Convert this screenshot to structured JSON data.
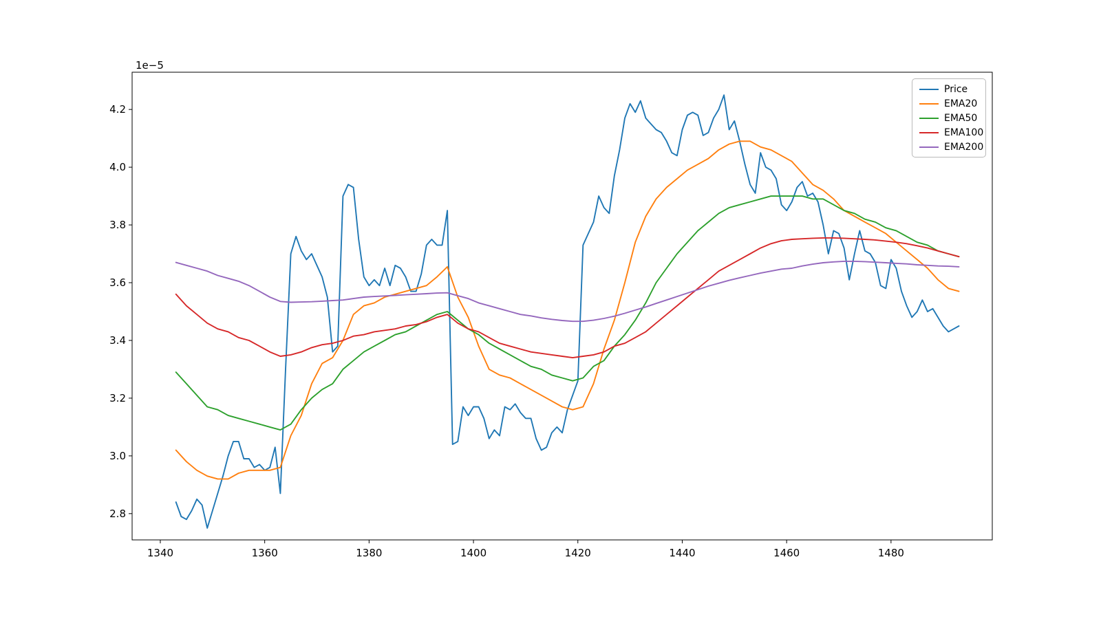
{
  "chart_data": {
    "type": "line",
    "title": "",
    "xlabel": "",
    "ylabel": "",
    "y_offset_label": "1e−5",
    "xlim": [
      1334.6,
      1499.4
    ],
    "ylim": [
      2.709,
      4.329
    ],
    "x_ticks": [
      1340,
      1360,
      1380,
      1400,
      1420,
      1440,
      1460,
      1480
    ],
    "y_ticks": [
      2.8,
      3.0,
      3.2,
      3.4,
      3.6,
      3.8,
      4.0,
      4.2
    ],
    "grid": false,
    "legend_position": "upper right",
    "series": [
      {
        "name": "Price",
        "color": "#1f77b4",
        "x_start": 1343,
        "x_step": 1,
        "values": [
          2.84,
          2.79,
          2.78,
          2.81,
          2.85,
          2.83,
          2.75,
          2.81,
          2.87,
          2.93,
          3.0,
          3.05,
          3.05,
          2.99,
          2.99,
          2.96,
          2.97,
          2.95,
          2.96,
          3.03,
          2.87,
          3.3,
          3.7,
          3.76,
          3.71,
          3.68,
          3.7,
          3.66,
          3.62,
          3.55,
          3.36,
          3.38,
          3.9,
          3.94,
          3.93,
          3.75,
          3.62,
          3.59,
          3.61,
          3.59,
          3.65,
          3.59,
          3.66,
          3.65,
          3.62,
          3.57,
          3.57,
          3.63,
          3.73,
          3.75,
          3.73,
          3.73,
          3.85,
          3.04,
          3.05,
          3.17,
          3.14,
          3.17,
          3.17,
          3.13,
          3.06,
          3.09,
          3.07,
          3.17,
          3.16,
          3.18,
          3.15,
          3.13,
          3.13,
          3.06,
          3.02,
          3.03,
          3.08,
          3.1,
          3.08,
          3.16,
          3.21,
          3.26,
          3.73,
          3.77,
          3.81,
          3.9,
          3.86,
          3.84,
          3.97,
          4.06,
          4.17,
          4.22,
          4.19,
          4.23,
          4.17,
          4.15,
          4.13,
          4.12,
          4.09,
          4.05,
          4.04,
          4.13,
          4.18,
          4.19,
          4.18,
          4.11,
          4.12,
          4.17,
          4.2,
          4.25,
          4.13,
          4.16,
          4.09,
          4.01,
          3.94,
          3.91,
          4.05,
          4.0,
          3.99,
          3.96,
          3.87,
          3.85,
          3.88,
          3.93,
          3.95,
          3.9,
          3.91,
          3.88,
          3.8,
          3.7,
          3.78,
          3.77,
          3.72,
          3.61,
          3.7,
          3.78,
          3.71,
          3.7,
          3.67,
          3.59,
          3.58,
          3.68,
          3.65,
          3.57,
          3.52,
          3.48,
          3.5,
          3.54,
          3.5,
          3.51,
          3.48,
          3.45,
          3.43,
          3.44,
          3.45
        ]
      },
      {
        "name": "EMA20",
        "color": "#ff7f0e",
        "x_start": 1343,
        "x_step": 2,
        "values": [
          3.02,
          2.98,
          2.95,
          2.93,
          2.92,
          2.92,
          2.94,
          2.95,
          2.95,
          2.95,
          2.96,
          3.07,
          3.14,
          3.25,
          3.32,
          3.34,
          3.4,
          3.49,
          3.52,
          3.53,
          3.55,
          3.56,
          3.57,
          3.58,
          3.59,
          3.62,
          3.655,
          3.55,
          3.48,
          3.38,
          3.3,
          3.28,
          3.27,
          3.25,
          3.23,
          3.21,
          3.19,
          3.17,
          3.16,
          3.17,
          3.25,
          3.37,
          3.47,
          3.6,
          3.74,
          3.83,
          3.89,
          3.93,
          3.96,
          3.99,
          4.01,
          4.03,
          4.06,
          4.08,
          4.09,
          4.09,
          4.07,
          4.06,
          4.04,
          4.02,
          3.98,
          3.94,
          3.92,
          3.89,
          3.85,
          3.83,
          3.81,
          3.79,
          3.77,
          3.74,
          3.71,
          3.68,
          3.65,
          3.61,
          3.58,
          3.57
        ]
      },
      {
        "name": "EMA50",
        "color": "#2ca02c",
        "x_start": 1343,
        "x_step": 2,
        "values": [
          3.29,
          3.25,
          3.21,
          3.17,
          3.16,
          3.14,
          3.13,
          3.12,
          3.11,
          3.1,
          3.09,
          3.11,
          3.16,
          3.2,
          3.23,
          3.25,
          3.3,
          3.33,
          3.36,
          3.38,
          3.4,
          3.42,
          3.43,
          3.45,
          3.47,
          3.49,
          3.5,
          3.47,
          3.44,
          3.42,
          3.39,
          3.37,
          3.35,
          3.33,
          3.31,
          3.3,
          3.28,
          3.27,
          3.26,
          3.27,
          3.31,
          3.33,
          3.38,
          3.42,
          3.47,
          3.53,
          3.6,
          3.65,
          3.7,
          3.74,
          3.78,
          3.81,
          3.84,
          3.86,
          3.87,
          3.88,
          3.89,
          3.9,
          3.9,
          3.9,
          3.9,
          3.89,
          3.89,
          3.87,
          3.85,
          3.84,
          3.82,
          3.81,
          3.79,
          3.78,
          3.76,
          3.74,
          3.73,
          3.71,
          3.7,
          3.69
        ]
      },
      {
        "name": "EMA100",
        "color": "#d62728",
        "x_start": 1343,
        "x_step": 2,
        "values": [
          3.56,
          3.52,
          3.49,
          3.46,
          3.44,
          3.43,
          3.41,
          3.4,
          3.38,
          3.36,
          3.345,
          3.35,
          3.36,
          3.375,
          3.385,
          3.39,
          3.4,
          3.415,
          3.42,
          3.43,
          3.435,
          3.44,
          3.45,
          3.455,
          3.465,
          3.48,
          3.49,
          3.46,
          3.44,
          3.43,
          3.41,
          3.39,
          3.38,
          3.37,
          3.36,
          3.355,
          3.35,
          3.345,
          3.34,
          3.345,
          3.35,
          3.36,
          3.38,
          3.39,
          3.41,
          3.43,
          3.46,
          3.49,
          3.52,
          3.55,
          3.58,
          3.61,
          3.64,
          3.66,
          3.68,
          3.7,
          3.72,
          3.735,
          3.745,
          3.75,
          3.752,
          3.754,
          3.755,
          3.755,
          3.754,
          3.752,
          3.75,
          3.748,
          3.744,
          3.74,
          3.735,
          3.728,
          3.72,
          3.71,
          3.7,
          3.69
        ]
      },
      {
        "name": "EMA200",
        "color": "#9467bd",
        "x_start": 1343,
        "x_step": 2,
        "values": [
          3.67,
          3.66,
          3.65,
          3.64,
          3.625,
          3.615,
          3.605,
          3.59,
          3.57,
          3.55,
          3.535,
          3.532,
          3.533,
          3.534,
          3.536,
          3.538,
          3.54,
          3.545,
          3.55,
          3.552,
          3.554,
          3.556,
          3.558,
          3.56,
          3.562,
          3.564,
          3.565,
          3.555,
          3.545,
          3.53,
          3.52,
          3.51,
          3.5,
          3.49,
          3.485,
          3.478,
          3.473,
          3.469,
          3.466,
          3.466,
          3.47,
          3.476,
          3.484,
          3.494,
          3.505,
          3.516,
          3.528,
          3.54,
          3.552,
          3.564,
          3.576,
          3.588,
          3.598,
          3.608,
          3.617,
          3.625,
          3.633,
          3.64,
          3.647,
          3.65,
          3.658,
          3.664,
          3.669,
          3.672,
          3.674,
          3.674,
          3.673,
          3.671,
          3.669,
          3.667,
          3.665,
          3.662,
          3.66,
          3.658,
          3.657,
          3.655
        ]
      }
    ]
  }
}
